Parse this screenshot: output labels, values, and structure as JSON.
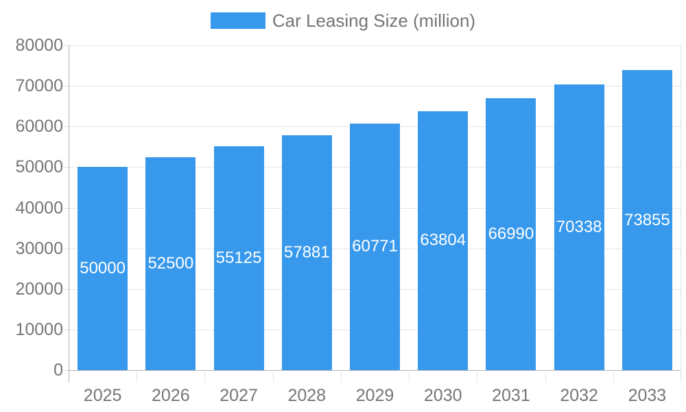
{
  "chart_data": {
    "type": "bar",
    "title": "",
    "legend": {
      "label": "Car Leasing Size (million)",
      "position": "top"
    },
    "categories": [
      "2025",
      "2026",
      "2027",
      "2028",
      "2029",
      "2030",
      "2031",
      "2032",
      "2033"
    ],
    "series": [
      {
        "name": "Car Leasing Size (million)",
        "values": [
          50000,
          52500,
          55125,
          57881,
          60771,
          63804,
          66990,
          70338,
          73855
        ]
      }
    ],
    "xlabel": "",
    "ylabel": "",
    "ylim": [
      0,
      80000
    ],
    "yticks": [
      0,
      10000,
      20000,
      30000,
      40000,
      50000,
      60000,
      70000,
      80000
    ],
    "grid": true,
    "bar_value_labels_shown": true,
    "colors": {
      "bar": "#3899ec",
      "gridline": "#e6e6e6",
      "axis_line": "#b3b3b3",
      "tick": "#e0e0e0",
      "axis_label": "#757575",
      "legend_text": "#757575",
      "value_label": "#ffffff",
      "background": "#ffffff"
    }
  }
}
